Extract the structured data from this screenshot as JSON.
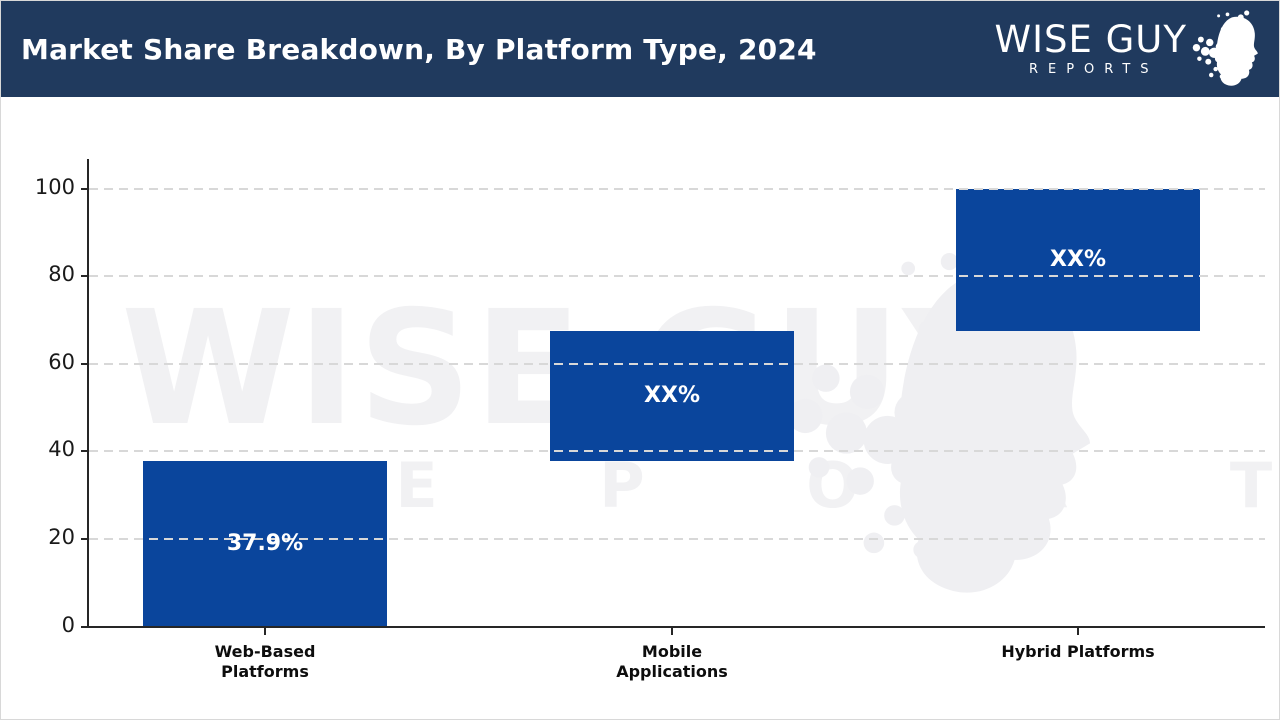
{
  "header": {
    "title": "Market Share Breakdown, By Platform Type, 2024",
    "logo": {
      "line1": "WISE GUY",
      "line2": "REPORTS"
    }
  },
  "watermark": {
    "line1": "WISE GUY",
    "line2": "REPORTS"
  },
  "chart_data": {
    "type": "bar",
    "subtype": "waterfall",
    "title": "Market Share Breakdown, By Platform Type, 2024",
    "categories": [
      "Web-Based\nPlatforms",
      "Mobile\nApplications",
      "Hybrid Platforms"
    ],
    "bars": [
      {
        "category": "Web-Based\nPlatforms",
        "start": 0,
        "end": 37.9,
        "label": "37.9%"
      },
      {
        "category": "Mobile\nApplications",
        "start": 37.9,
        "end": 67.5,
        "label": "XX%"
      },
      {
        "category": "Hybrid Platforms",
        "start": 67.5,
        "end": 100,
        "label": "XX%"
      }
    ],
    "ylim": [
      0,
      100
    ],
    "yticks": [
      0,
      20,
      40,
      60,
      80,
      100
    ],
    "grid": "horizontal-dashed",
    "legend": "none",
    "bar_color": "#0a459c",
    "bar_label_color": "#ffffff",
    "grid_color": "#d8d8d8",
    "header_color": "#203a5e"
  }
}
